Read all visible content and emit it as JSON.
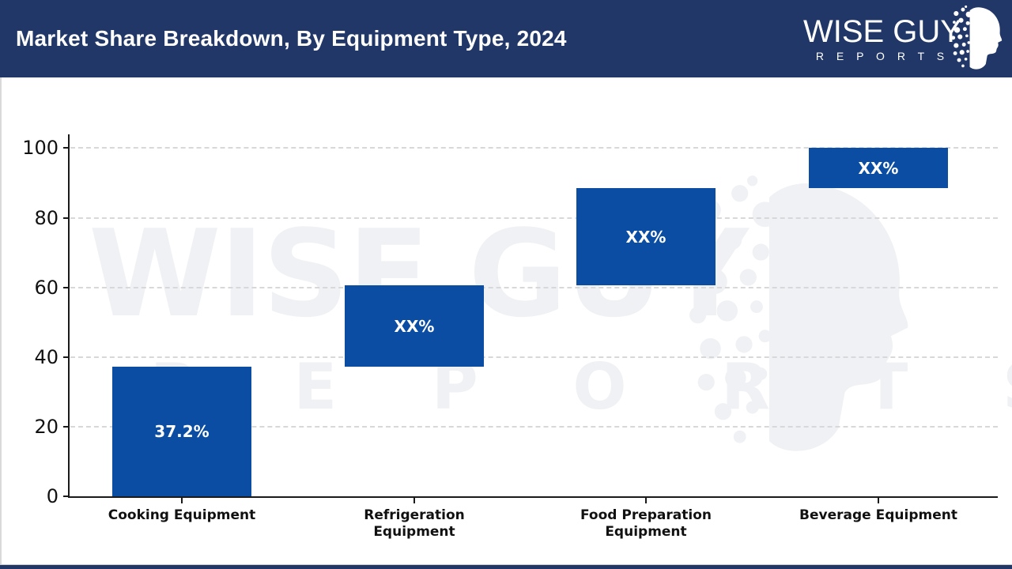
{
  "header": {
    "title": "Market Share Breakdown, By Equipment Type, 2024",
    "logo": {
      "line1": "WISE GUY",
      "line2": "R E P O R T S"
    }
  },
  "watermark": {
    "line1": "WISE GUY",
    "line2": "R E P O R T S"
  },
  "colors": {
    "header_bg": "#213767",
    "bar": "#0b4da2",
    "bar_label": "#ffffff",
    "gridline": "#d8d8d8",
    "axis": "#1a1a1a",
    "watermark": "#f0f1f4",
    "footer_bar": "#213767"
  },
  "chart_data": {
    "type": "bar",
    "subtype": "waterfall",
    "title": "Market Share Breakdown, By Equipment Type, 2024",
    "categories": [
      "Cooking Equipment",
      "Refrigeration Equipment",
      "Food Preparation Equipment",
      "Beverage Equipment"
    ],
    "category_lines": [
      [
        "Cooking Equipment"
      ],
      [
        "Refrigeration",
        "Equipment"
      ],
      [
        "Food Preparation",
        "Equipment"
      ],
      [
        "Beverage Equipment"
      ]
    ],
    "segments": [
      {
        "category": "Cooking Equipment",
        "start": 0,
        "end": 37.2,
        "value_label": "37.2%"
      },
      {
        "category": "Refrigeration Equipment",
        "start": 37.2,
        "end": 60.5,
        "value_label": "XX%"
      },
      {
        "category": "Food Preparation Equipment",
        "start": 60.5,
        "end": 88.5,
        "value_label": "XX%"
      },
      {
        "category": "Beverage Equipment",
        "start": 88.5,
        "end": 100,
        "value_label": "XX%"
      }
    ],
    "ylim": [
      0,
      100
    ],
    "yticks": [
      0,
      20,
      40,
      60,
      80,
      100
    ],
    "xlabel": "",
    "ylabel": "",
    "grid": "horizontal-dashed",
    "legend": "none"
  }
}
